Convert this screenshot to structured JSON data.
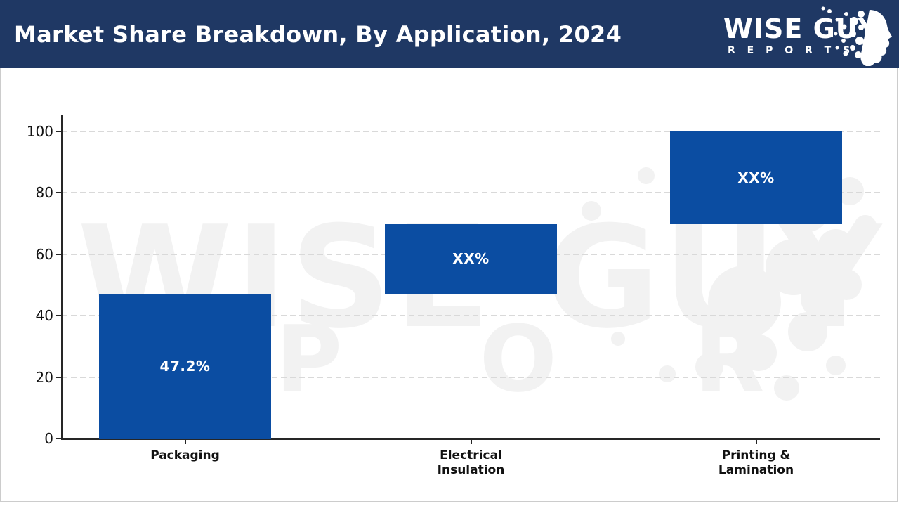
{
  "header": {
    "title": "Market Share Breakdown, By Application, 2024",
    "logo": {
      "name": "WISE GUY",
      "sub": "R E P O R T S"
    }
  },
  "watermark": {
    "line1": "WISE GUY",
    "line2": "P O R T S"
  },
  "chart_data": {
    "type": "bar",
    "subtype": "floating-waterfall",
    "title": "Market Share Breakdown, By Application, 2024",
    "categories": [
      "Packaging",
      "Electrical Insulation",
      "Printing & Lamination"
    ],
    "category_label_lines": [
      [
        "Packaging"
      ],
      [
        "Electrical",
        "Insulation"
      ],
      [
        "Printing &",
        "Lamination"
      ]
    ],
    "bars": [
      {
        "category": "Packaging",
        "from": 0,
        "to": 47.2,
        "label": "47.2%"
      },
      {
        "category": "Electrical Insulation",
        "from": 47.2,
        "to": 69.9,
        "label": "XX%"
      },
      {
        "category": "Printing & Lamination",
        "from": 69.9,
        "to": 100,
        "label": "XX%"
      }
    ],
    "yticks": [
      0,
      20,
      40,
      60,
      80,
      100
    ],
    "ylim": [
      0,
      105
    ],
    "grid": "dashed-horizontal",
    "legend": "none",
    "bar_color": "#0b4da2",
    "bar_label_color": "#ffffff"
  },
  "colors": {
    "header_bg": "#1f3864",
    "bar": "#0b4da2",
    "grid": "#d9d9d9",
    "axis": "#262626",
    "watermark": "#f2f2f2",
    "frame": "#cccccc",
    "logo_text": "#ffffff"
  }
}
